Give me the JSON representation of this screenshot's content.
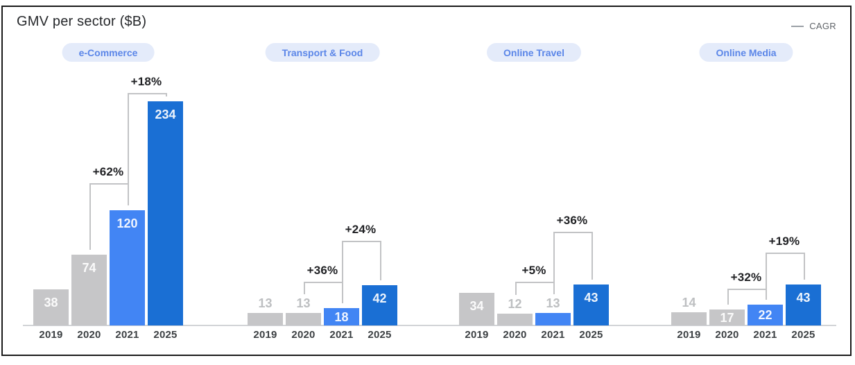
{
  "header": {
    "title": "GMV per sector ($B)",
    "legend": {
      "label": "CAGR"
    }
  },
  "chart_data": {
    "type": "bar",
    "title": "GMV per sector ($B)",
    "unit": "$B",
    "categories": [
      "2019",
      "2020",
      "2021",
      "2025"
    ],
    "legend_entries": [
      {
        "label": "CAGR",
        "marker": "gray-dash"
      }
    ],
    "groups": [
      {
        "sector": "e-Commerce",
        "values": [
          38,
          74,
          120,
          234
        ],
        "cagr_annotations": [
          {
            "from": "2020",
            "to": "2021",
            "label": "+62%"
          },
          {
            "from": "2021",
            "to": "2025",
            "label": "+18%"
          }
        ]
      },
      {
        "sector": "Transport & Food",
        "values": [
          13,
          13,
          18,
          42
        ],
        "cagr_annotations": [
          {
            "from": "2020",
            "to": "2021",
            "label": "+36%"
          },
          {
            "from": "2021",
            "to": "2025",
            "label": "+24%"
          }
        ]
      },
      {
        "sector": "Online Travel",
        "values": [
          34,
          12,
          13,
          43
        ],
        "cagr_annotations": [
          {
            "from": "2020",
            "to": "2021",
            "label": "+5%"
          },
          {
            "from": "2021",
            "to": "2025",
            "label": "+36%"
          }
        ]
      },
      {
        "sector": "Online Media",
        "values": [
          14,
          17,
          22,
          43
        ],
        "cagr_annotations": [
          {
            "from": "2020",
            "to": "2021",
            "label": "+32%"
          },
          {
            "from": "2021",
            "to": "2025",
            "label": "+19%"
          }
        ]
      }
    ],
    "colors": {
      "bar_gray": "#c6c6c8",
      "bar_2021_blue": "#4285f4",
      "bar_2025_blue": "#1a6fd4",
      "pill_bg": "#e4ebfa",
      "pill_text": "#5b86e8",
      "bracket_line": "#c2c3c5",
      "annotation_text": "#202124",
      "above_value_text": "#bdbfc1"
    }
  }
}
